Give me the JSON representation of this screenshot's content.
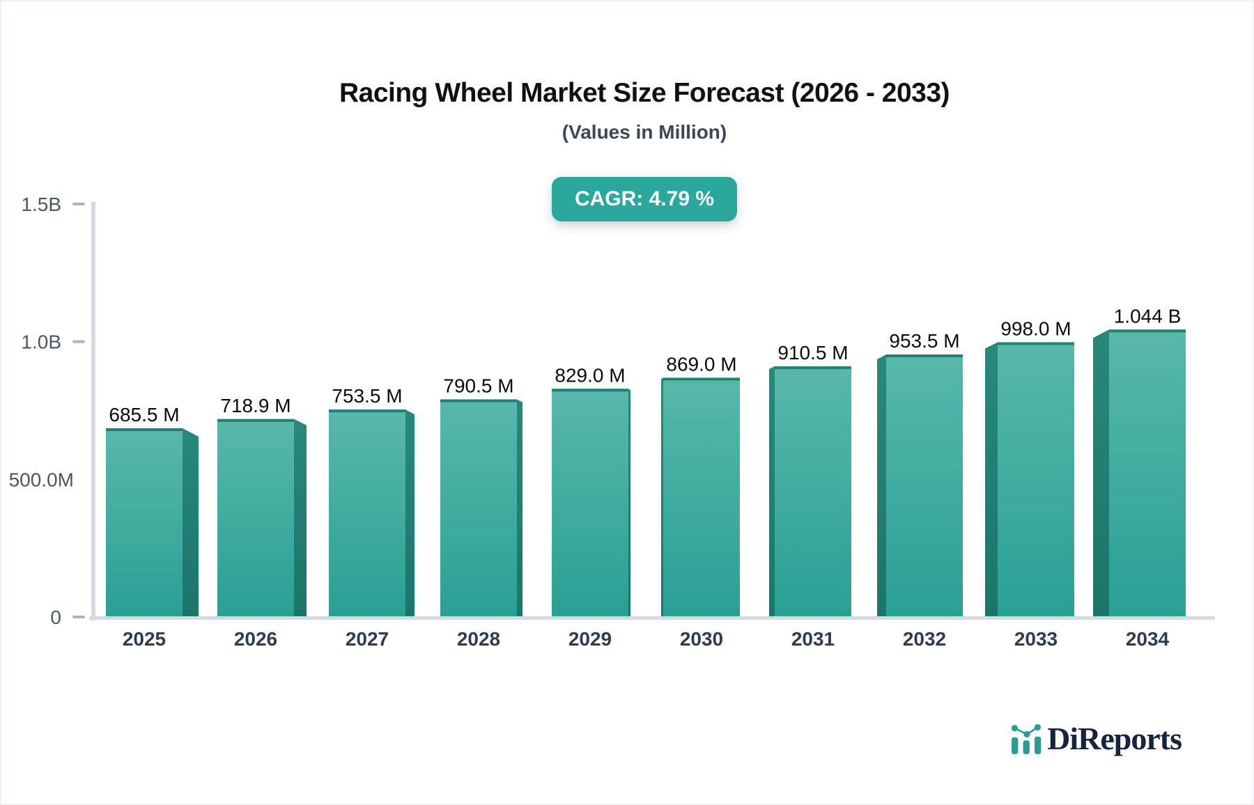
{
  "chart_data": {
    "type": "bar",
    "style": "3d-column",
    "title": "Racing Wheel Market Size Forecast (2026 - 2033)",
    "subtitle": "(Values in Million)",
    "cagr_badge": "CAGR: 4.79 %",
    "cagr_percent": 4.79,
    "categories": [
      "2025",
      "2026",
      "2027",
      "2028",
      "2029",
      "2030",
      "2031",
      "2032",
      "2033",
      "2034"
    ],
    "values_in_millions": [
      685.5,
      718.9,
      753.5,
      790.5,
      829.0,
      869.0,
      910.5,
      953.5,
      998.0,
      1044.0
    ],
    "bar_value_labels": [
      "685.5 M",
      "718.9 M",
      "753.5 M",
      "790.5 M",
      "829.0 M",
      "869.0 M",
      "910.5 M",
      "953.5 M",
      "998.0 M",
      "1.044 B"
    ],
    "xlabel": "",
    "ylabel": "",
    "y_axis": {
      "ylim": [
        0,
        1500
      ],
      "ticks": [
        {
          "label": "1.5B",
          "value": 1500,
          "tick_mark": true
        },
        {
          "label": "1.0B",
          "value": 1000,
          "tick_mark": true
        },
        {
          "label": "500.0M",
          "value": 500,
          "tick_mark": false
        },
        {
          "label": "0",
          "value": 0,
          "tick_mark": true
        }
      ]
    },
    "grid": false,
    "legend": null
  },
  "logo": {
    "text": "DiReports"
  },
  "colors": {
    "badge_bg": "#2aa89b",
    "badge_text": "#ffffff",
    "bar_front_top": "#58b8ab",
    "bar_front_bottom": "#29a093",
    "bar_side_top": "#27897b",
    "bar_side_bottom": "#1c7568",
    "bar_top_edge": "#1e8376",
    "axis_line": "#d6dade",
    "tick_mark": "#adb5bc",
    "y_label": "#4b5763",
    "x_label": "#2e3c50",
    "value_label": "#0b0b0b",
    "title_text": "#0e1217",
    "subtitle_text": "#3c4856",
    "logo_text": "#16243c",
    "logo_icon": "#2a9d92"
  }
}
